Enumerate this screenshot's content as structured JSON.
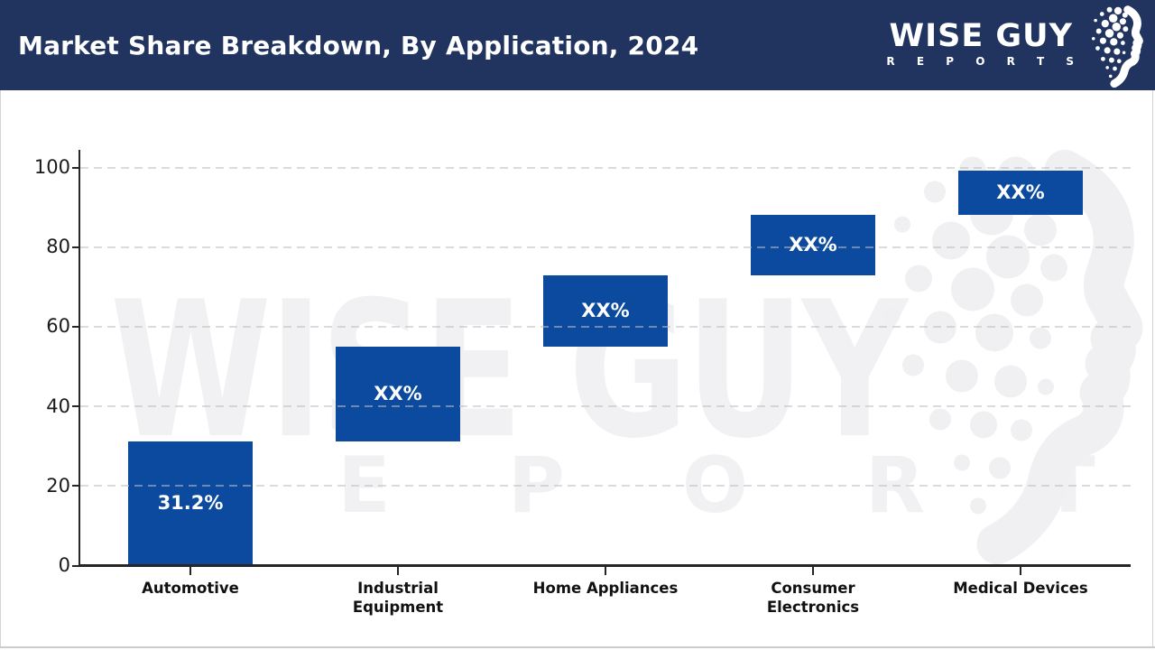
{
  "header": {
    "title": "Market Share Breakdown, By Application, 2024",
    "logo": {
      "name": "WISE GUY",
      "sub": "R E P O R T S"
    }
  },
  "watermark": {
    "line1": "WISE GUY",
    "line2": "R E P O R T S"
  },
  "chart_data": {
    "type": "bar",
    "subtype": "waterfall",
    "title": "Market Share Breakdown, By Application, 2024",
    "categories": [
      "Automotive",
      "Industrial\nEquipment",
      "Home Appliances",
      "Consumer\nElectronics",
      "Medical Devices"
    ],
    "bars": [
      {
        "category": "Automotive",
        "label": "31.2%",
        "start": 0,
        "end": 31.2
      },
      {
        "category": "Industrial Equipment",
        "label": "XX%",
        "start": 31.2,
        "end": 55
      },
      {
        "category": "Home Appliances",
        "label": "XX%",
        "start": 55,
        "end": 73
      },
      {
        "category": "Consumer Electronics",
        "label": "XX%",
        "start": 73,
        "end": 88
      },
      {
        "category": "Medical Devices",
        "label": "XX%",
        "start": 88,
        "end": 99.3
      }
    ],
    "y_ticks": [
      0,
      20,
      40,
      60,
      80,
      100
    ],
    "ylim": [
      0,
      104
    ],
    "xlabel": "",
    "ylabel": "",
    "grid": "horizontal-dashed",
    "legend": "none",
    "bar_color": "#0B4A9E",
    "value_label_color": "#ffffff"
  },
  "colors": {
    "header_bg": "#21345F",
    "bar": "#0B4A9E",
    "axis": "#262626",
    "grid": "#d9d9d9",
    "watermark": "#f1f1f4"
  }
}
